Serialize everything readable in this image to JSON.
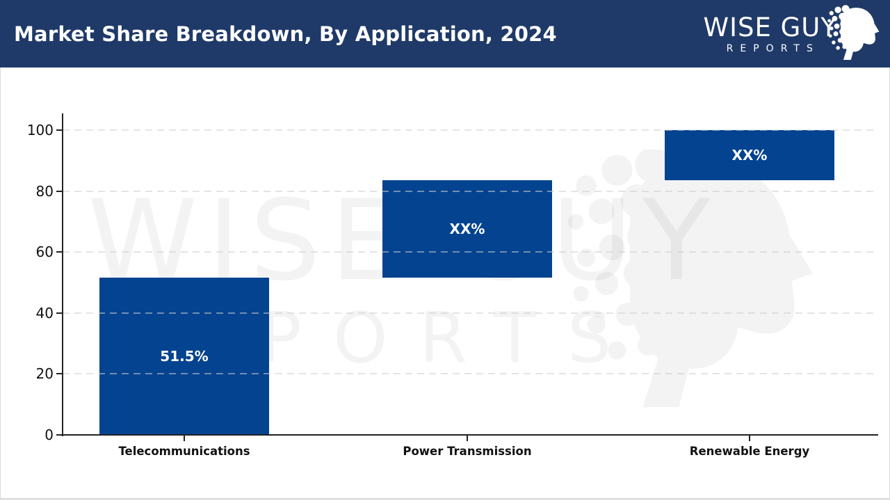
{
  "header": {
    "title": "Market Share Breakdown, By Application, 2024",
    "logo": {
      "line1": "WISE GUY",
      "line2": "REPORTS"
    }
  },
  "watermark": {
    "line1": "WISE GUY",
    "line2": "REPORTS"
  },
  "colors": {
    "header_bg": "#1f3a68",
    "bar": "#04438f",
    "axis": "#222222",
    "gridline": "#d3d3d3",
    "bar_label": "#ffffff",
    "tick_label": "#111111"
  },
  "chart_data": {
    "type": "bar",
    "subtype": "floating-waterfall",
    "title": "Market Share Breakdown, By Application, 2024",
    "xlabel": "",
    "ylabel": "",
    "categories": [
      "Telecommunications",
      "Power Transmission",
      "Renewable Energy"
    ],
    "series": [
      {
        "name": "Market Share",
        "segments": [
          {
            "category": "Telecommunications",
            "start": 0,
            "end": 51.5,
            "label": "51.5%"
          },
          {
            "category": "Power Transmission",
            "start": 51.5,
            "end": 83.5,
            "label": "XX%"
          },
          {
            "category": "Renewable Energy",
            "start": 83.5,
            "end": 100,
            "label": "XX%"
          }
        ]
      }
    ],
    "ylim": [
      0,
      100
    ],
    "yticks": [
      0,
      20,
      40,
      60,
      80,
      100
    ],
    "grid": "dashed-horizontal-over-bars",
    "legend": "none"
  }
}
